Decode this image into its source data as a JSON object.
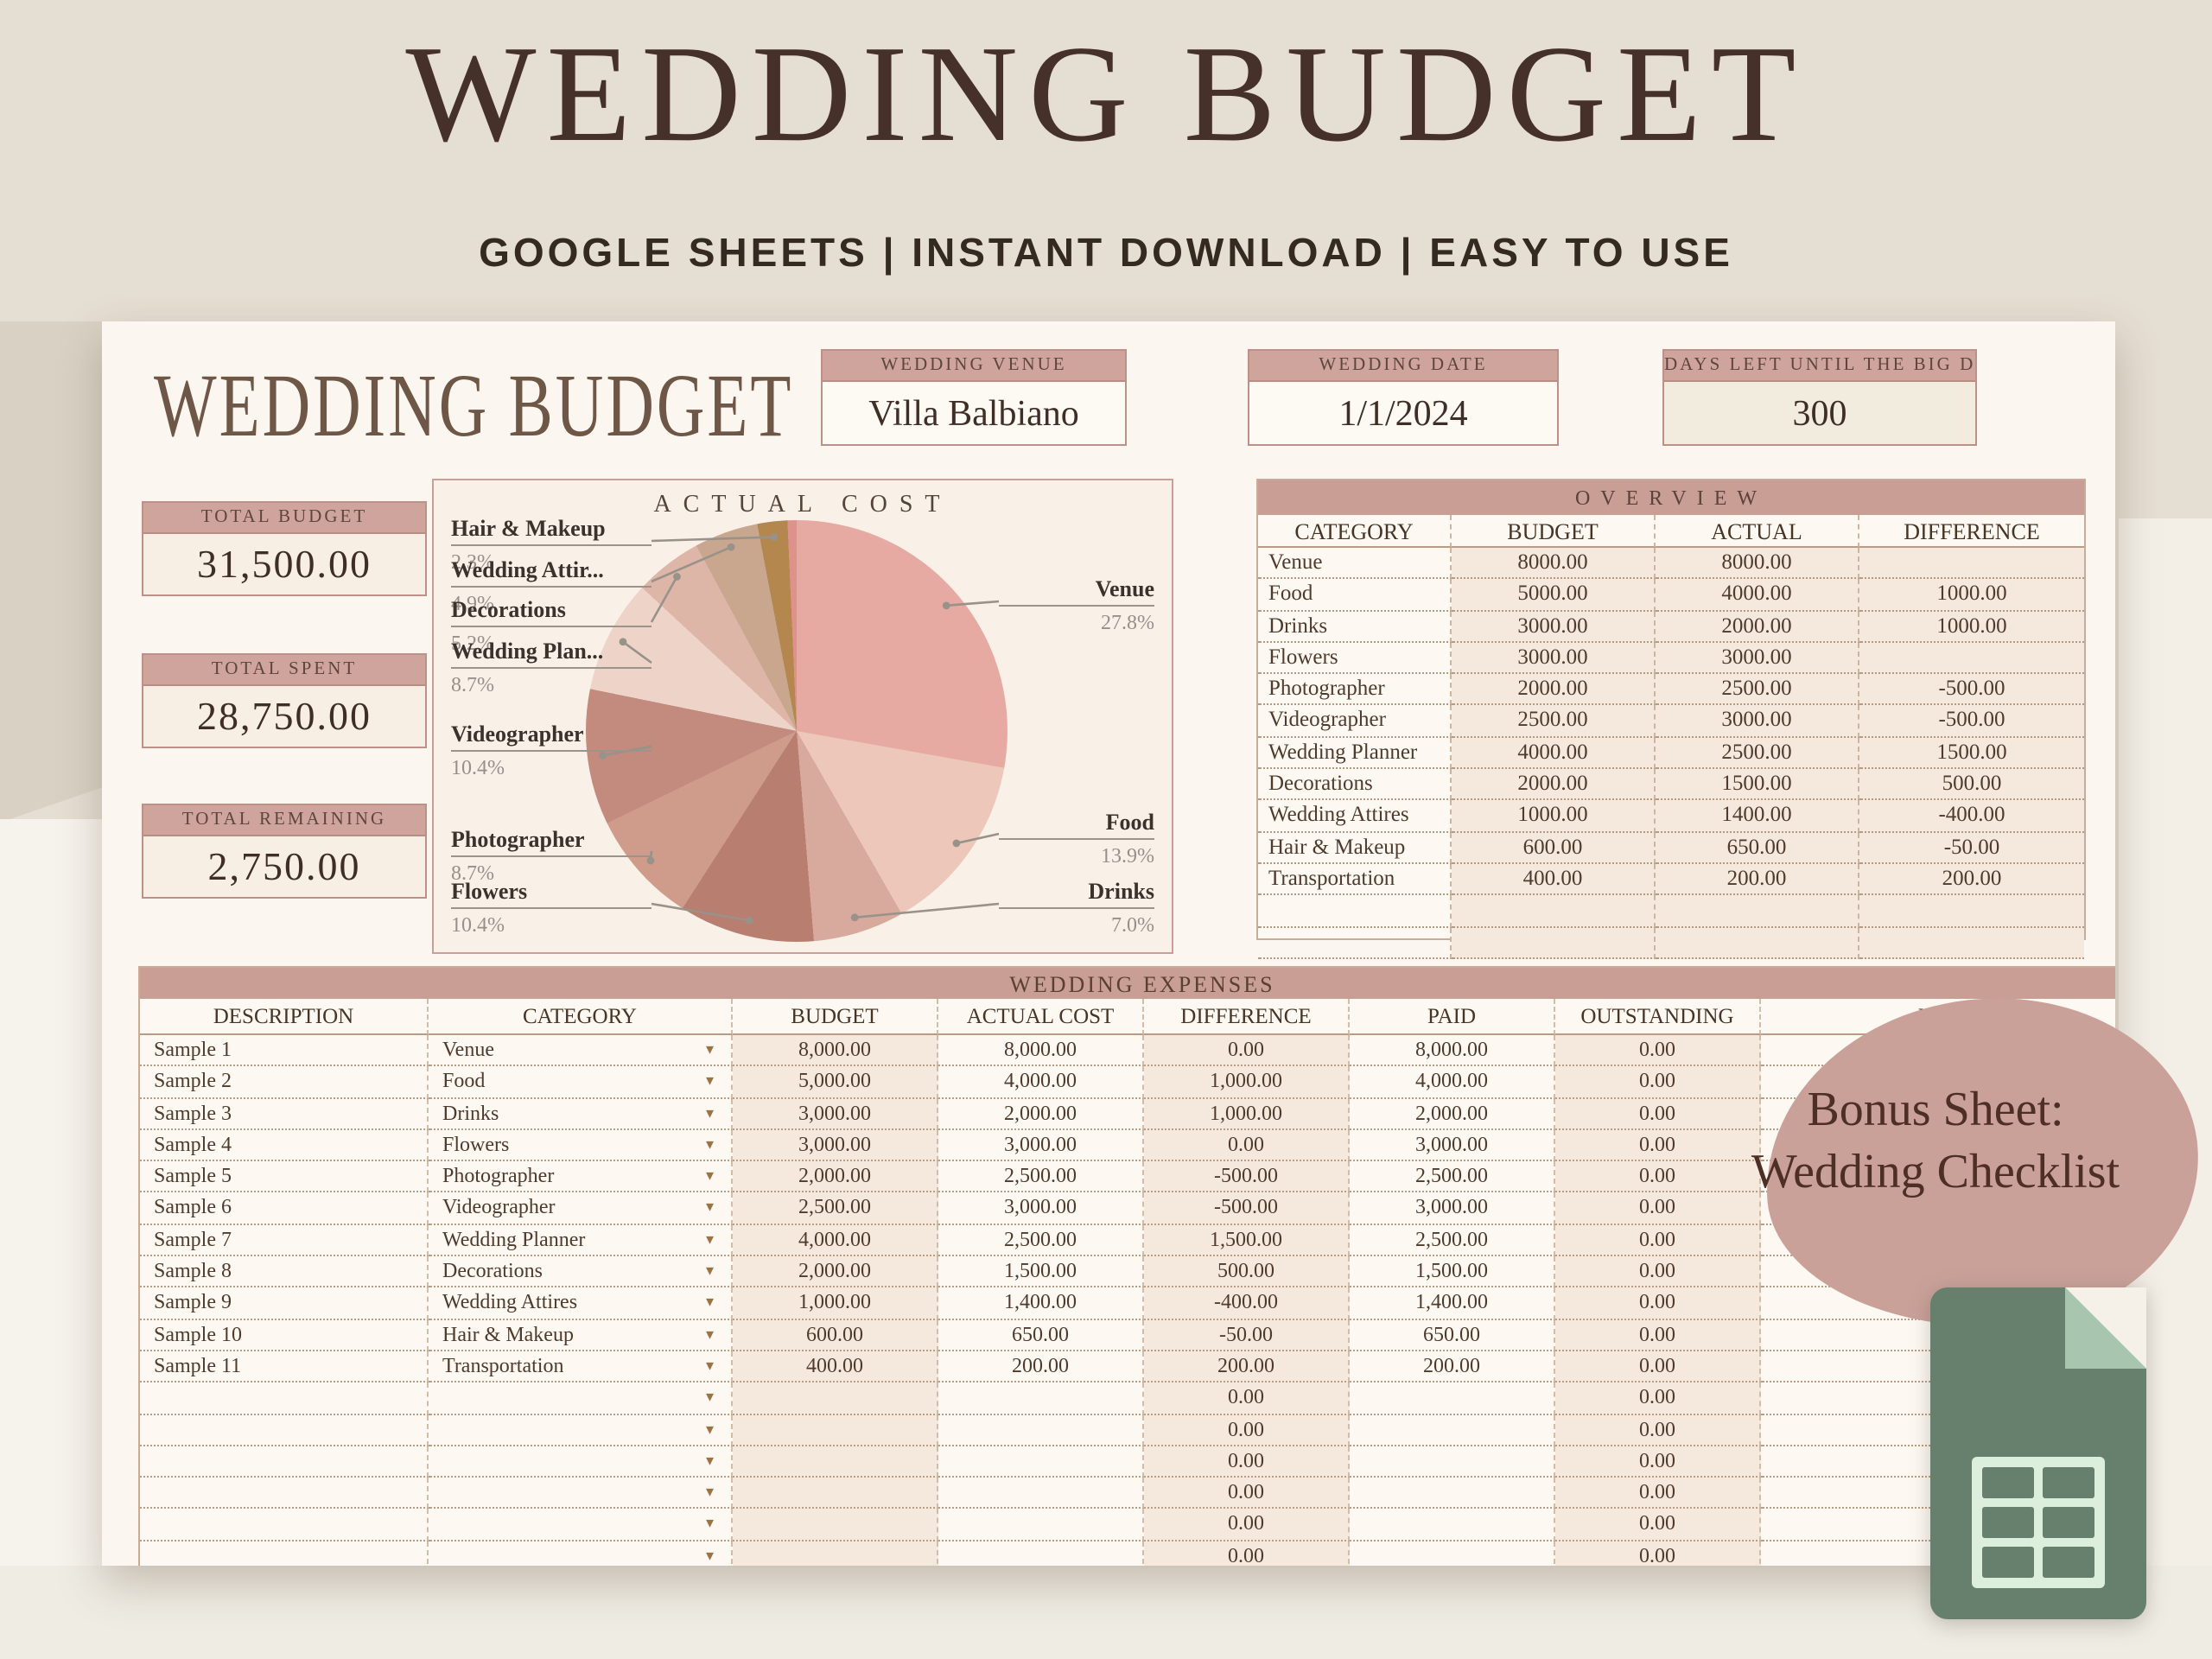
{
  "page": {
    "title": "WEDDING BUDGET",
    "subtitle": "GOOGLE SHEETS | INSTANT DOWNLOAD | EASY TO USE"
  },
  "sheet": {
    "heading": "WEDDING BUDGET",
    "info_boxes": [
      {
        "label": "WEDDING VENUE",
        "value": "Villa Balbiano"
      },
      {
        "label": "WEDDING DATE",
        "value": "1/1/2024"
      },
      {
        "label": "DAYS LEFT UNTIL THE BIG DAY",
        "value": "300"
      }
    ],
    "totals": [
      {
        "label": "TOTAL BUDGET",
        "value": "31,500.00"
      },
      {
        "label": "TOTAL SPENT",
        "value": "28,750.00"
      },
      {
        "label": "TOTAL REMAINING",
        "value": "2,750.00"
      }
    ]
  },
  "chart_data": {
    "type": "pie",
    "title": "ACTUAL COST",
    "legend_position": "outside-callouts",
    "slices": [
      {
        "label": "Venue",
        "pct": 27.8,
        "color": "#e6aaa3"
      },
      {
        "label": "Food",
        "pct": 13.9,
        "color": "#edc8ba"
      },
      {
        "label": "Drinks",
        "pct": 7.0,
        "color": "#d8a99d"
      },
      {
        "label": "Flowers",
        "pct": 10.4,
        "color": "#b87e6f"
      },
      {
        "label": "Photographer",
        "pct": 8.7,
        "color": "#cf9b8b"
      },
      {
        "label": "Videographer",
        "pct": 10.4,
        "color": "#c28b7d"
      },
      {
        "label": "Wedding Planner",
        "pct": 8.7,
        "color": "#eed3c9"
      },
      {
        "label": "Decorations",
        "pct": 5.2,
        "color": "#ddb6a8"
      },
      {
        "label": "Wedding Attires",
        "pct": 4.9,
        "color": "#c9a78e"
      },
      {
        "label": "Hair & Makeup",
        "pct": 2.3,
        "color": "#b3874e"
      },
      {
        "label": "Transportation",
        "pct": 0.7,
        "color": "#dd938b"
      }
    ],
    "callouts": [
      {
        "slice": 9,
        "display": "Hair & Makeup",
        "pct_text": "2.3%",
        "side": "left"
      },
      {
        "slice": 8,
        "display": "Wedding Attir...",
        "pct_text": "4.9%",
        "side": "left"
      },
      {
        "slice": 7,
        "display": "Decorations",
        "pct_text": "5.2%",
        "side": "left"
      },
      {
        "slice": 6,
        "display": "Wedding Plan...",
        "pct_text": "8.7%",
        "side": "left"
      },
      {
        "slice": 5,
        "display": "Videographer",
        "pct_text": "10.4%",
        "side": "left"
      },
      {
        "slice": 4,
        "display": "Photographer",
        "pct_text": "8.7%",
        "side": "left"
      },
      {
        "slice": 3,
        "display": "Flowers",
        "pct_text": "10.4%",
        "side": "left"
      },
      {
        "slice": 0,
        "display": "Venue",
        "pct_text": "27.8%",
        "side": "right"
      },
      {
        "slice": 1,
        "display": "Food",
        "pct_text": "13.9%",
        "side": "right"
      },
      {
        "slice": 2,
        "display": "Drinks",
        "pct_text": "7.0%",
        "side": "right"
      }
    ]
  },
  "overview": {
    "title": "OVERVIEW",
    "headers": [
      "CATEGORY",
      "BUDGET",
      "ACTUAL",
      "DIFFERENCE"
    ],
    "rows": [
      [
        "Venue",
        "8000.00",
        "8000.00",
        ""
      ],
      [
        "Food",
        "5000.00",
        "4000.00",
        "1000.00"
      ],
      [
        "Drinks",
        "3000.00",
        "2000.00",
        "1000.00"
      ],
      [
        "Flowers",
        "3000.00",
        "3000.00",
        ""
      ],
      [
        "Photographer",
        "2000.00",
        "2500.00",
        "-500.00"
      ],
      [
        "Videographer",
        "2500.00",
        "3000.00",
        "-500.00"
      ],
      [
        "Wedding Planner",
        "4000.00",
        "2500.00",
        "1500.00"
      ],
      [
        "Decorations",
        "2000.00",
        "1500.00",
        "500.00"
      ],
      [
        "Wedding Attires",
        "1000.00",
        "1400.00",
        "-400.00"
      ],
      [
        "Hair & Makeup",
        "600.00",
        "650.00",
        "-50.00"
      ],
      [
        "Transportation",
        "400.00",
        "200.00",
        "200.00"
      ]
    ],
    "empty_rows": 2
  },
  "expenses": {
    "title": "WEDDING EXPENSES",
    "headers": [
      "DESCRIPTION",
      "CATEGORY",
      "BUDGET",
      "ACTUAL COST",
      "DIFFERENCE",
      "PAID",
      "OUTSTANDING",
      "NOTES"
    ],
    "rows": [
      [
        "Sample 1",
        "Venue",
        "8,000.00",
        "8,000.00",
        "0.00",
        "8,000.00",
        "0.00",
        ""
      ],
      [
        "Sample 2",
        "Food",
        "5,000.00",
        "4,000.00",
        "1,000.00",
        "4,000.00",
        "0.00",
        ""
      ],
      [
        "Sample 3",
        "Drinks",
        "3,000.00",
        "2,000.00",
        "1,000.00",
        "2,000.00",
        "0.00",
        ""
      ],
      [
        "Sample 4",
        "Flowers",
        "3,000.00",
        "3,000.00",
        "0.00",
        "3,000.00",
        "0.00",
        ""
      ],
      [
        "Sample 5",
        "Photographer",
        "2,000.00",
        "2,500.00",
        "-500.00",
        "2,500.00",
        "0.00",
        ""
      ],
      [
        "Sample 6",
        "Videographer",
        "2,500.00",
        "3,000.00",
        "-500.00",
        "3,000.00",
        "0.00",
        ""
      ],
      [
        "Sample 7",
        "Wedding Planner",
        "4,000.00",
        "2,500.00",
        "1,500.00",
        "2,500.00",
        "0.00",
        ""
      ],
      [
        "Sample 8",
        "Decorations",
        "2,000.00",
        "1,500.00",
        "500.00",
        "1,500.00",
        "0.00",
        ""
      ],
      [
        "Sample 9",
        "Wedding Attires",
        "1,000.00",
        "1,400.00",
        "-400.00",
        "1,400.00",
        "0.00",
        ""
      ],
      [
        "Sample 10",
        "Hair & Makeup",
        "600.00",
        "650.00",
        "-50.00",
        "650.00",
        "0.00",
        ""
      ],
      [
        "Sample 11",
        "Transportation",
        "400.00",
        "200.00",
        "200.00",
        "200.00",
        "0.00",
        ""
      ]
    ],
    "empty_rows": 7,
    "empty_row_template": [
      "",
      "",
      "",
      "",
      "0.00",
      "",
      "0.00",
      ""
    ]
  },
  "bonus": {
    "line1": "Bonus Sheet:",
    "line2": "Wedding Checklist"
  },
  "icons": {
    "sheets_icon": "google-sheets-icon",
    "dropdown_caret": "▾"
  },
  "colors": {
    "accent_rose": "#c89e95",
    "header_rose": "#cfa49c",
    "card_bg": "#fbf6ef",
    "beige_cell": "#f4e9dc",
    "title_brown": "#45312a",
    "bonus_blob": "#c9a199",
    "sheets_green": "#66806d"
  }
}
